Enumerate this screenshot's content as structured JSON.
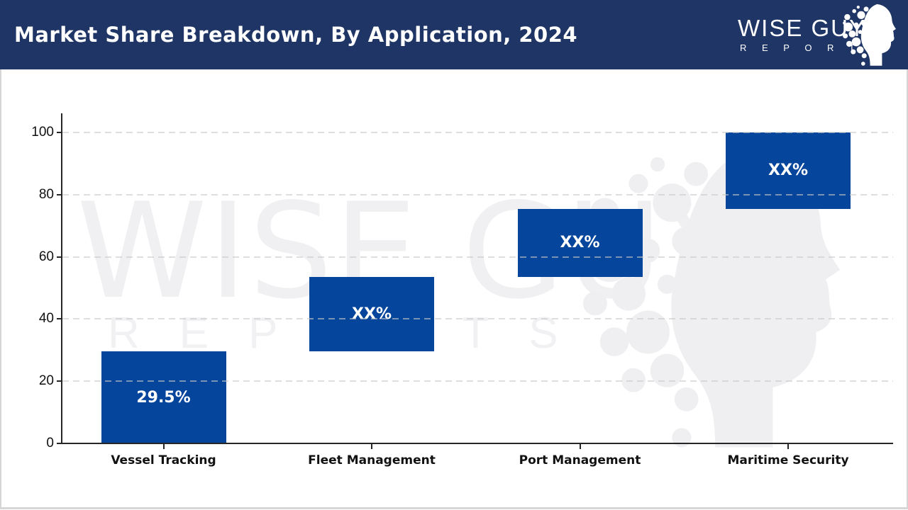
{
  "header": {
    "title": "Market Share Breakdown, By Application, 2024",
    "brand_line1": "WISE GUY",
    "brand_line2": "R E P O R T S"
  },
  "watermark": {
    "line1": "WISE GUY",
    "line2": "REPORTS"
  },
  "colors": {
    "header_bg": "#1F3565",
    "bar": "#06459C",
    "grid": "#DCDCDC",
    "axis": "#262626",
    "watermark": "#F0F0F2",
    "panel_border": "#D6D6D6",
    "title_text": "#FFFFFF",
    "bar_label_text": "#FFFFFF"
  },
  "chart_data": {
    "type": "bar",
    "subtype": "floating-segment-breakdown",
    "title": "Market Share Breakdown, By Application, 2024",
    "categories": [
      "Vessel Tracking",
      "Fleet Management",
      "Port Management",
      "Maritime Security"
    ],
    "segments": [
      {
        "category": "Vessel Tracking",
        "start": 0,
        "end": 29.5,
        "label": "29.5%"
      },
      {
        "category": "Fleet Management",
        "start": 29.5,
        "end": 53.5,
        "label": "XX%"
      },
      {
        "category": "Port Management",
        "start": 53.5,
        "end": 75.5,
        "label": "XX%"
      },
      {
        "category": "Maritime Security",
        "start": 75.5,
        "end": 100,
        "label": "XX%"
      }
    ],
    "ylim": [
      0,
      100
    ],
    "yticks": [
      0,
      20,
      40,
      60,
      80,
      100
    ],
    "xlabel": "",
    "ylabel": "",
    "grid": "horizontal-dashed",
    "legend": "none",
    "bar_color": "#06459C"
  }
}
